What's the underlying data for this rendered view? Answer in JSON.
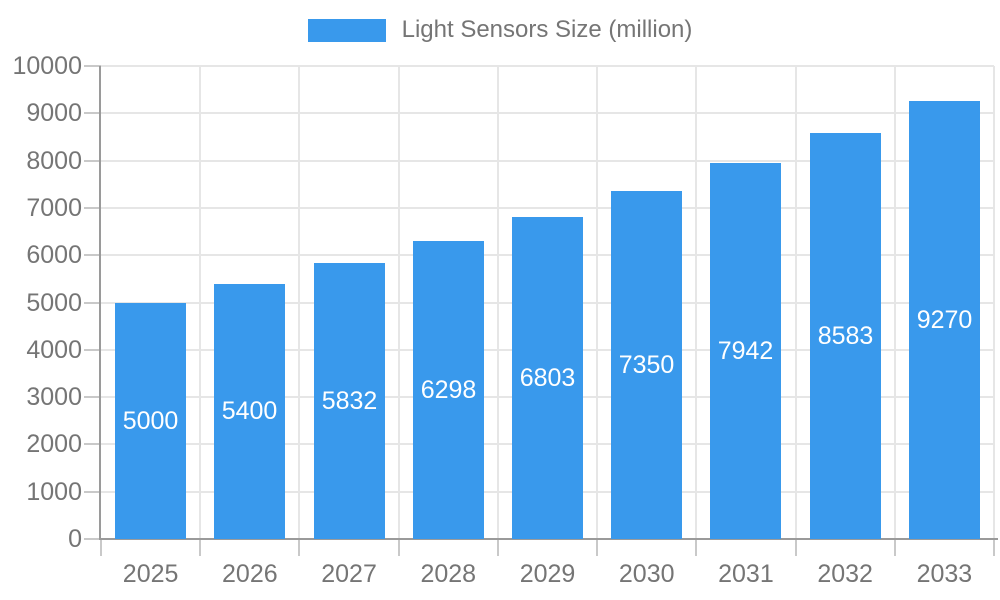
{
  "chart_data": {
    "type": "bar",
    "legend_label": "Light Sensors Size (million)",
    "categories": [
      "2025",
      "2026",
      "2027",
      "2028",
      "2029",
      "2030",
      "2031",
      "2032",
      "2033"
    ],
    "values": [
      5000,
      5400,
      5832,
      6298,
      6803,
      7350,
      7942,
      8583,
      9270
    ],
    "value_labels": [
      "5000",
      "5400",
      "5832",
      "6298",
      "6803",
      "7350",
      "7942",
      "8583",
      "9270"
    ],
    "title": "",
    "xlabel": "",
    "ylabel": "",
    "ylim": [
      0,
      10000
    ],
    "ytick_step": 1000,
    "yticks": [
      "0",
      "1000",
      "2000",
      "3000",
      "4000",
      "5000",
      "6000",
      "7000",
      "8000",
      "9000",
      "10000"
    ],
    "grid": true,
    "legend_position": "top",
    "colors": {
      "bar": "#3999EC",
      "bar_value_text": "#ffffff",
      "axis_text": "#757575",
      "gridline": "#e6e6e6",
      "axis_line": "#9a9a9a",
      "tick": "#c9c9c9",
      "background": "#ffffff"
    }
  }
}
